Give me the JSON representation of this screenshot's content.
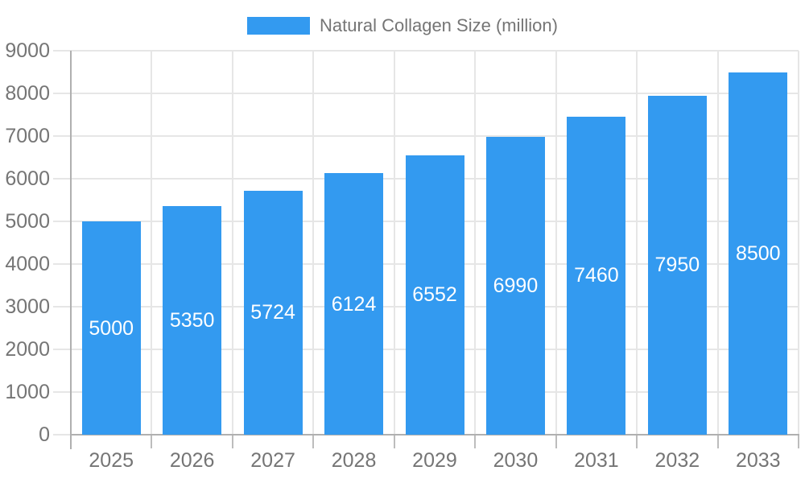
{
  "chart_data": {
    "type": "bar",
    "title": "",
    "legend": {
      "label": "Natural Collagen Size (million)",
      "position": "top"
    },
    "categories": [
      "2025",
      "2026",
      "2027",
      "2028",
      "2029",
      "2030",
      "2031",
      "2032",
      "2033"
    ],
    "series": [
      {
        "name": "Natural Collagen Size (million)",
        "values": [
          5000,
          5350,
          5724,
          6124,
          6552,
          6990,
          7460,
          7950,
          8500
        ]
      }
    ],
    "bar_value_labels": [
      "5000",
      "5350",
      "5724",
      "6124",
      "6552",
      "6990",
      "7460",
      "7950",
      "8500"
    ],
    "xlabel": "",
    "ylabel": "",
    "ylim": [
      0,
      9000
    ],
    "ytick_step": 1000,
    "yticks": [
      0,
      1000,
      2000,
      3000,
      4000,
      5000,
      6000,
      7000,
      8000,
      9000
    ],
    "grid": "horizontal-and-vertical",
    "legend_position": "top-center",
    "value_labels_position": "inside-center"
  },
  "colors": {
    "bar": "#339AF0",
    "grid": "#e6e6e6",
    "axis": "#b0b0b0",
    "tick": "#bdbdbd",
    "text": "#757575",
    "bar_label": "#ffffff",
    "background": "#ffffff"
  }
}
